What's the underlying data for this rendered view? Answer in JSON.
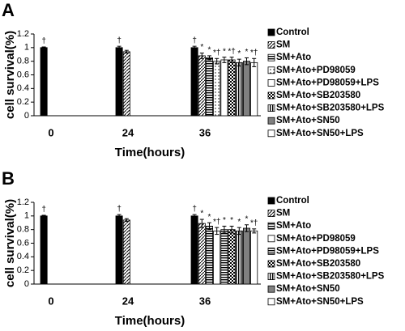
{
  "chart_data": [
    {
      "type": "bar",
      "label": "A",
      "ylabel": "cell survival(%)",
      "xlabel": "Time(hours)",
      "categories": [
        "0",
        "24",
        "36"
      ],
      "ylim": [
        0,
        1.2
      ],
      "yticks": [
        0,
        0.2,
        0.4,
        0.6,
        0.8,
        1,
        1.2
      ],
      "series": [
        {
          "name": "Control",
          "color": "#000000",
          "pattern": "solid",
          "values": [
            1,
            1,
            1
          ],
          "errors": [
            0.01,
            0.02,
            0.02
          ],
          "annotations": [
            "†",
            "†",
            "†"
          ]
        },
        {
          "name": "SM",
          "color": "#000000",
          "pattern": "diagonal",
          "values": [
            null,
            0.94,
            0.88
          ],
          "errors": [
            null,
            0.02,
            0.04
          ],
          "annotations": [
            null,
            null,
            "*"
          ]
        },
        {
          "name": "SM+Ato",
          "color": "#000000",
          "pattern": "horizontal",
          "values": [
            null,
            null,
            0.85
          ],
          "errors": [
            null,
            null,
            0.03
          ],
          "annotations": [
            null,
            null,
            "*"
          ]
        },
        {
          "name": "SM+Ato+PD98059",
          "color": "#000000",
          "pattern": "dots",
          "values": [
            null,
            null,
            0.8
          ],
          "errors": [
            null,
            null,
            0.04
          ],
          "annotations": [
            null,
            null,
            "*†"
          ]
        },
        {
          "name": "SM+Ato+PD98059+LPS",
          "color": "#000000",
          "pattern": "none",
          "values": [
            null,
            null,
            0.82
          ],
          "errors": [
            null,
            null,
            0.04
          ],
          "annotations": [
            null,
            null,
            "*"
          ]
        },
        {
          "name": "SM+Ato+SB203580",
          "color": "#000000",
          "pattern": "checker",
          "values": [
            null,
            null,
            0.82
          ],
          "errors": [
            null,
            null,
            0.04
          ],
          "annotations": [
            null,
            null,
            "*†"
          ]
        },
        {
          "name": "SM+Ato+SB203580+LPS",
          "color": "#000000",
          "pattern": "vertical",
          "values": [
            null,
            null,
            0.78
          ],
          "errors": [
            null,
            null,
            0.05
          ],
          "annotations": [
            null,
            null,
            "*"
          ]
        },
        {
          "name": "SM+Ato+SN50",
          "color": "#808080",
          "pattern": "solid",
          "values": [
            null,
            null,
            0.8
          ],
          "errors": [
            null,
            null,
            0.05
          ],
          "annotations": [
            null,
            null,
            "*"
          ]
        },
        {
          "name": "SM+Ato+SN50+LPS",
          "color": "#000000",
          "pattern": "none",
          "values": [
            null,
            null,
            0.78
          ],
          "errors": [
            null,
            null,
            0.06
          ],
          "annotations": [
            null,
            null,
            "*†"
          ]
        }
      ]
    },
    {
      "type": "bar",
      "label": "B",
      "ylabel": "cell survival(%)",
      "xlabel": "Time(hours)",
      "categories": [
        "0",
        "24",
        "36"
      ],
      "ylim": [
        0,
        1.2
      ],
      "yticks": [
        0,
        0.2,
        0.4,
        0.6,
        0.8,
        1,
        1.2
      ],
      "series": [
        {
          "name": "Control",
          "color": "#000000",
          "pattern": "solid",
          "values": [
            1,
            1,
            1
          ],
          "errors": [
            0.01,
            0.02,
            0.02
          ],
          "annotations": [
            "†",
            "†",
            "†"
          ]
        },
        {
          "name": "SM",
          "color": "#000000",
          "pattern": "diagonal",
          "values": [
            null,
            0.94,
            0.89
          ],
          "errors": [
            null,
            0.02,
            0.06
          ],
          "annotations": [
            null,
            null,
            "*"
          ]
        },
        {
          "name": "SM+Ato",
          "color": "#000000",
          "pattern": "horizontal",
          "values": [
            null,
            null,
            0.85
          ],
          "errors": [
            null,
            null,
            0.05
          ],
          "annotations": [
            null,
            null,
            "*"
          ]
        },
        {
          "name": "SM+Ato+PD98059",
          "color": "#000000",
          "pattern": "none",
          "values": [
            null,
            null,
            0.78
          ],
          "errors": [
            null,
            null,
            0.05
          ],
          "annotations": [
            null,
            null,
            "*†"
          ]
        },
        {
          "name": "SM+Ato+PD98059+LPS",
          "color": "#000000",
          "pattern": "horizontal",
          "values": [
            null,
            null,
            0.8
          ],
          "errors": [
            null,
            null,
            0.05
          ],
          "annotations": [
            null,
            null,
            "*"
          ]
        },
        {
          "name": "SM+Ato+SB203580",
          "color": "#000000",
          "pattern": "checker",
          "values": [
            null,
            null,
            0.8
          ],
          "errors": [
            null,
            null,
            0.05
          ],
          "annotations": [
            null,
            null,
            "*"
          ]
        },
        {
          "name": "SM+Ato+SB203580+LPS",
          "color": "#000000",
          "pattern": "vertical",
          "values": [
            null,
            null,
            0.78
          ],
          "errors": [
            null,
            null,
            0.05
          ],
          "annotations": [
            null,
            null,
            "*"
          ]
        },
        {
          "name": "SM+Ato+SN50",
          "color": "#808080",
          "pattern": "solid",
          "values": [
            null,
            null,
            0.82
          ],
          "errors": [
            null,
            null,
            0.05
          ],
          "annotations": [
            null,
            null,
            "*"
          ]
        },
        {
          "name": "SM+Ato+SN50+LPS",
          "color": "#000000",
          "pattern": "none",
          "values": [
            null,
            null,
            0.78
          ],
          "errors": [
            null,
            null,
            0.03
          ],
          "annotations": [
            null,
            null,
            "*†"
          ]
        }
      ]
    }
  ]
}
